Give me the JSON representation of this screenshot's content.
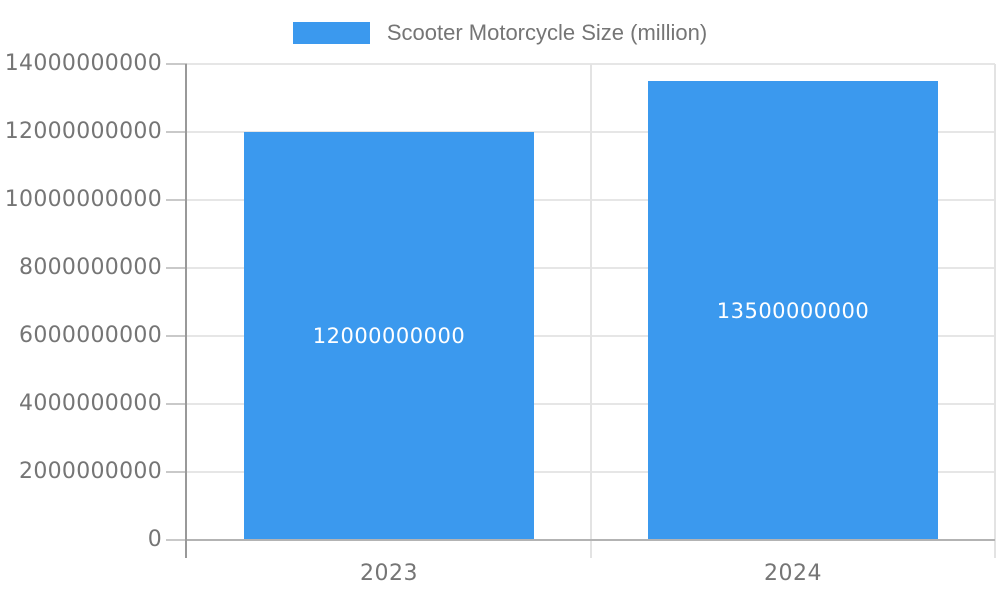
{
  "chart_data": {
    "type": "bar",
    "title": "",
    "categories": [
      "2023",
      "2024"
    ],
    "series": [
      {
        "name": "Scooter Motorcycle Size (million)",
        "values": [
          12000000000,
          13500000000
        ]
      }
    ],
    "bar_value_labels": [
      "12000000000",
      "13500000000"
    ],
    "xlabel": "",
    "ylabel": "",
    "ylim": [
      0,
      14000000000
    ],
    "yticks": [
      0,
      2000000000,
      4000000000,
      6000000000,
      8000000000,
      10000000000,
      12000000000,
      14000000000
    ],
    "ytick_labels": [
      "0",
      "2000000000",
      "4000000000",
      "6000000000",
      "8000000000",
      "10000000000",
      "12000000000",
      "14000000000"
    ],
    "grid": true,
    "legend_position": "top",
    "colors": {
      "bar": "#3b99ee",
      "grid": "#e6e6e6",
      "category_separator": "#e3e3e3",
      "x_axis_line": "#b3b3b3",
      "y_axis_line": "#999999",
      "tick": "#c9c9c9",
      "label_text": "#757575",
      "bar_label_text": "#ffffff",
      "background": "#ffffff"
    }
  }
}
